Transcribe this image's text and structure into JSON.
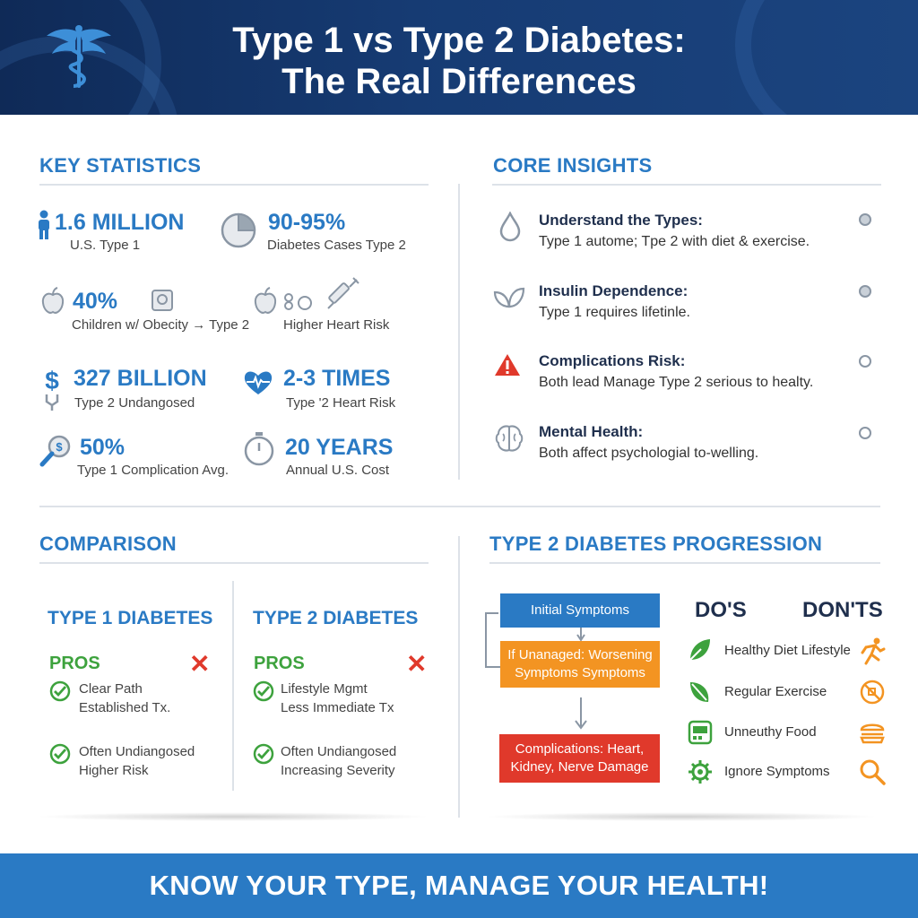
{
  "header": {
    "title_line1": "Type 1 vs Type 2 Diabetes:",
    "title_line2": "The Real Differences",
    "logo_icon": "caduceus-icon"
  },
  "key_statistics": {
    "title": "KEY STATISTICS",
    "items": [
      {
        "value": "1.6 MILLION",
        "label": "U.S. Type 1",
        "icon": "person-icon"
      },
      {
        "value": "90-95%",
        "label": "Diabetes Cases Type 2",
        "icon": "pie-chart-icon"
      },
      {
        "value": "40%",
        "label": "Children w/ Obecity → Type 2",
        "icon": "apple-icon"
      },
      {
        "value": "",
        "label": "Higher Heart Risk",
        "icon": "syringe-icon"
      },
      {
        "value": "327 BILLION",
        "label": "Type 2 Undangosed",
        "icon": "dollar-icon"
      },
      {
        "value": "2-3 TIMES",
        "label": "Type '2 Heart Risk",
        "icon": "heartbeat-icon"
      },
      {
        "value": "50%",
        "label": "Type 1 Complication Avg.",
        "icon": "magnifier-dollar-icon"
      },
      {
        "value": "20 YEARS",
        "label": "Annual U.S. Cost",
        "icon": "stopwatch-icon"
      }
    ]
  },
  "core_insights": {
    "title": "CORE INSIGHTS",
    "items": [
      {
        "heading": "Understand the Types:",
        "text": "Type 1 autome; Tpe 2 with diet & exercise.",
        "icon": "drop-icon"
      },
      {
        "heading": "Insulin Dependence:",
        "text": "Type 1 requires lifetinle.",
        "icon": "leaf-icon"
      },
      {
        "heading": "Complications Risk:",
        "text": "Both lead Manage Type 2 serious to healty.",
        "icon": "warning-icon"
      },
      {
        "heading": "Mental Health:",
        "text": "Both affect psychologial to-welling.",
        "icon": "brain-icon"
      }
    ]
  },
  "comparison": {
    "title": "COMPARISON",
    "type1": {
      "heading": "TYPE 1 DIABETES",
      "pros_label": "PROS",
      "items": [
        {
          "line1": "Clear Path",
          "line2": "Established Tx."
        },
        {
          "line1": "Often Undiangosed",
          "line2": "Higher Risk"
        }
      ]
    },
    "type2": {
      "heading": "TYPE 2 DIABETES",
      "pros_label": "PROS",
      "items": [
        {
          "line1": "Lifestyle Mgmt",
          "line2": "Less Immediate Tx"
        },
        {
          "line1": "Often Undiangosed",
          "line2": "Increasing Severity"
        }
      ]
    }
  },
  "progression": {
    "title": "TYPE 2 DIABETES PROGRESSION",
    "steps": [
      {
        "line1": "Initial Symptoms",
        "line2": "",
        "color": "#2a7ac4"
      },
      {
        "line1": "If Unanaged: Worsening",
        "line2": "Symptoms Symptoms",
        "color": "#f39422"
      },
      {
        "line1": "Complications: Heart,",
        "line2": "Kidney, Nerve Damage",
        "color": "#e0392b"
      }
    ],
    "dos_label": "DO'S",
    "donts_label": "DON'TS",
    "list": [
      {
        "text": "Healthy Diet Lifestyle",
        "do_icon": "leaf-icon",
        "dont_icon": "runner-icon"
      },
      {
        "text": "Regular Exercise",
        "do_icon": "leaf-icon",
        "dont_icon": "no-sugar-icon"
      },
      {
        "text": "Unneuthy Food",
        "do_icon": "monitor-icon",
        "dont_icon": "burger-icon"
      },
      {
        "text": "Ignore Symptoms",
        "do_icon": "gear-icon",
        "dont_icon": "search-icon"
      }
    ]
  },
  "footer": {
    "text": "KNOW YOUR TYPE, MANAGE YOUR HEALTH!"
  },
  "colors": {
    "header_bg": "#163b73",
    "accent_blue": "#2a7ac4",
    "green": "#3da23d",
    "red": "#e0392b",
    "orange": "#f39422"
  }
}
